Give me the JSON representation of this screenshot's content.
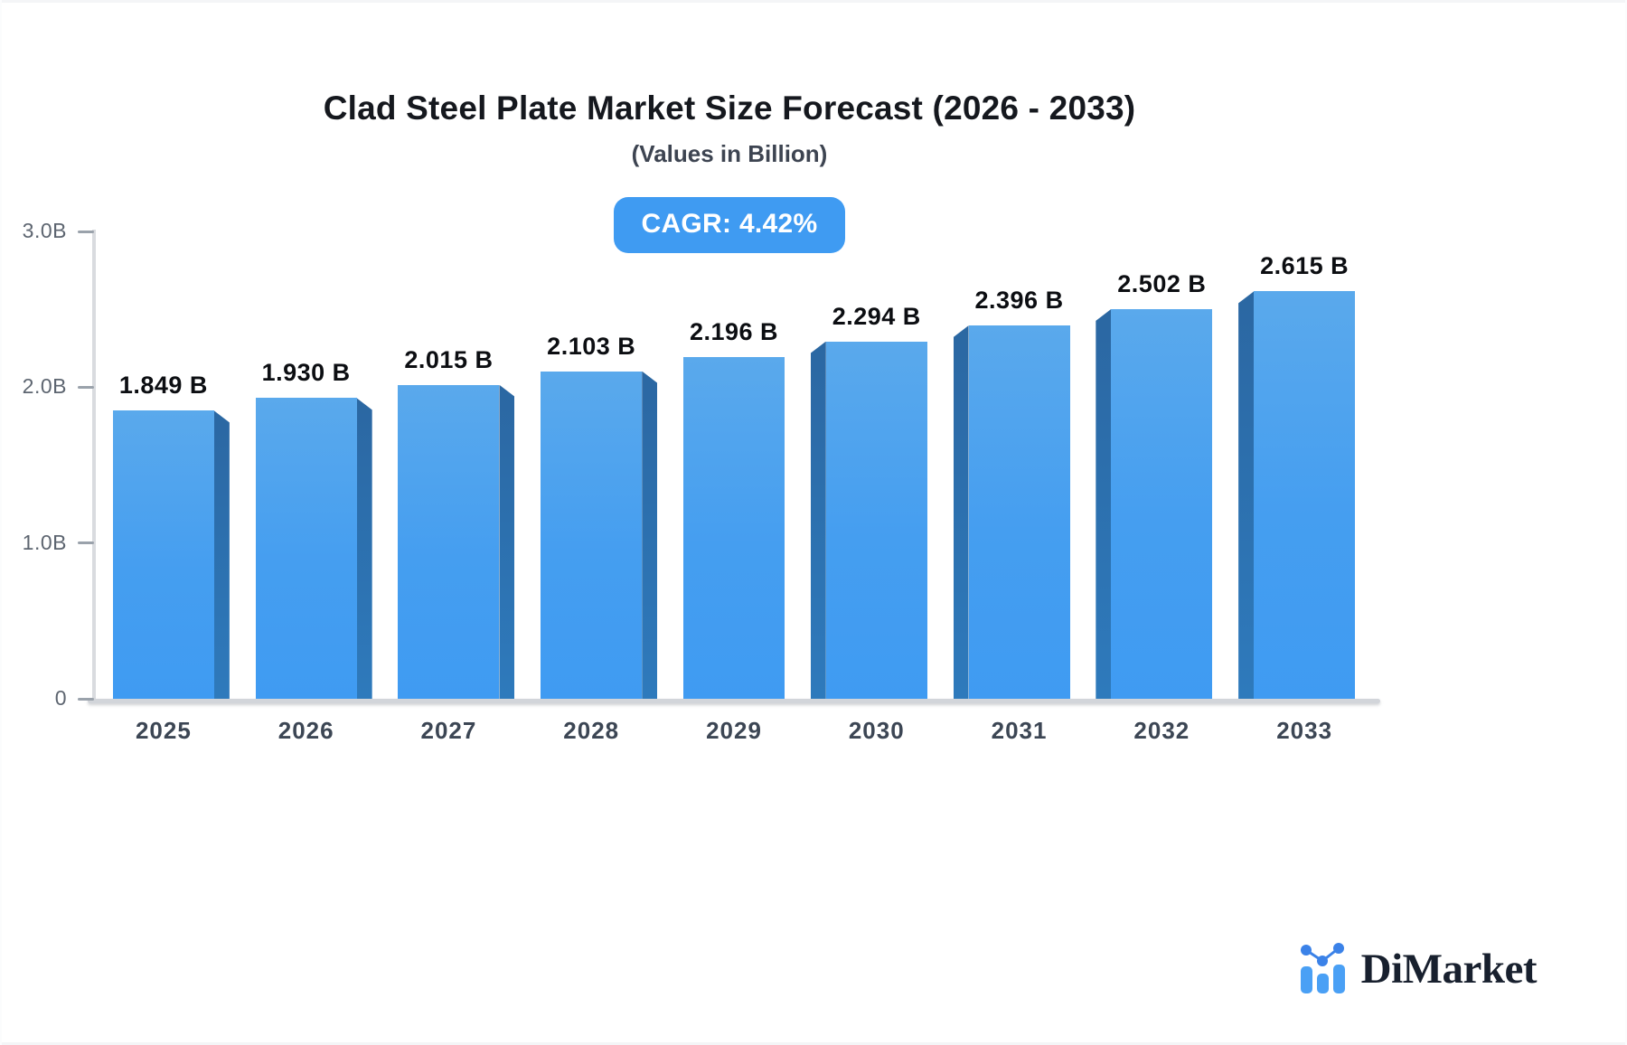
{
  "header": {
    "title": "Clad Steel Plate Market Size Forecast (2026 - 2033)",
    "subtitle": "(Values in Billion)",
    "cagr_badge": "CAGR: 4.42%"
  },
  "colors": {
    "accent": "#3f9bf2",
    "bar_face_top": "#5aa9ec",
    "bar_face_bottom": "#3f9bf2",
    "bar_side_dark": "#2b67a2",
    "axis_line": "#d2d5da",
    "tick_label": "#5d6570",
    "x_label": "#3c4654",
    "value_label": "#0c0e12",
    "logo_text": "#18202e",
    "logo_bar_blue": "#4aa0f5",
    "logo_dot_blue": "#3b82e8"
  },
  "brand": {
    "name": "DiMarket",
    "icon": "bar-line-chart-logo-icon"
  },
  "chart_data": {
    "type": "bar",
    "title": "Clad Steel Plate Market Size Forecast (2026 - 2033)",
    "subtitle": "(Values in Billion)",
    "annotation": "CAGR: 4.42%",
    "categories": [
      "2025",
      "2026",
      "2027",
      "2028",
      "2029",
      "2030",
      "2031",
      "2032",
      "2033"
    ],
    "values": [
      1.849,
      1.93,
      2.015,
      2.103,
      2.196,
      2.294,
      2.396,
      2.502,
      2.615
    ],
    "value_labels": [
      "1.849 B",
      "1.930 B",
      "2.015 B",
      "2.103 B",
      "2.196 B",
      "2.294 B",
      "2.396 B",
      "2.502 B",
      "2.615 B"
    ],
    "xlabel": "",
    "ylabel": "",
    "ylim": [
      0,
      3.0
    ],
    "y_ticks": [
      {
        "value": 3.0,
        "label": "3.0B"
      },
      {
        "value": 2.0,
        "label": "2.0B"
      },
      {
        "value": 1.0,
        "label": "1.0B"
      },
      {
        "value": 0,
        "label": "0"
      }
    ],
    "grid": false,
    "legend_position": "none",
    "bar_style": "3d-perspective, bevel faces away from center bar (2029)"
  }
}
